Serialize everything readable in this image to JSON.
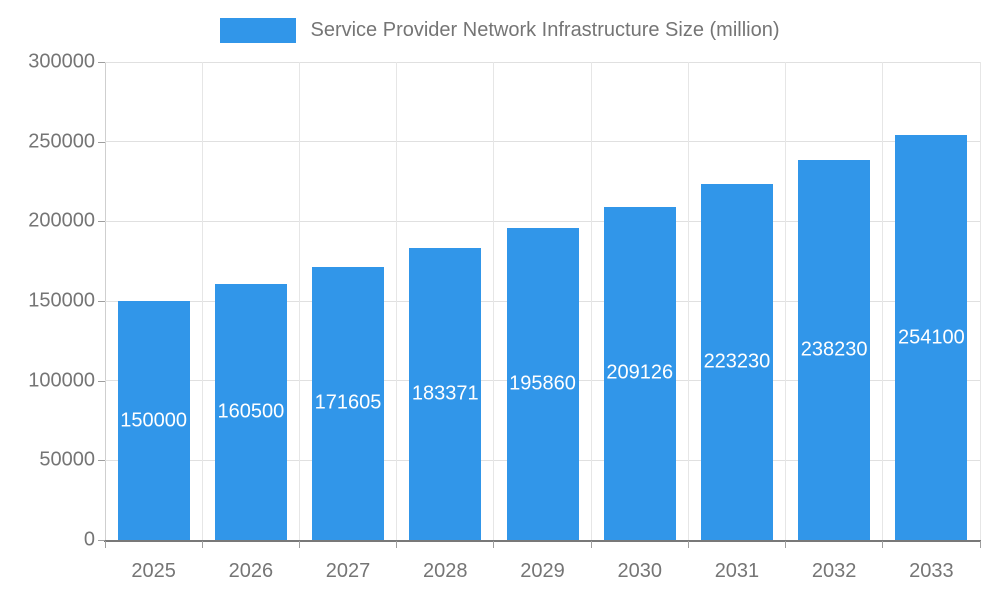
{
  "chart_data": {
    "type": "bar",
    "title": "Service Provider Network Infrastructure Size (million)",
    "categories": [
      "2025",
      "2026",
      "2027",
      "2028",
      "2029",
      "2030",
      "2031",
      "2032",
      "2033"
    ],
    "values": [
      150000,
      160500,
      171605,
      183371,
      195860,
      209126,
      223230,
      238230,
      254100
    ],
    "value_labels": [
      "150000",
      "160500",
      "171605",
      "183371",
      "195860",
      "209126",
      "223230",
      "238230",
      "254100"
    ],
    "ylim": [
      0,
      300000
    ],
    "ytick_interval": 50000,
    "yticks": [
      0,
      50000,
      100000,
      150000,
      200000,
      250000,
      300000
    ],
    "xlabel": "",
    "ylabel": "",
    "grid": true,
    "legend_position": "top",
    "bar_color": "#3196E9",
    "value_label_color": "#ffffff",
    "axis_text_color": "#757575"
  }
}
